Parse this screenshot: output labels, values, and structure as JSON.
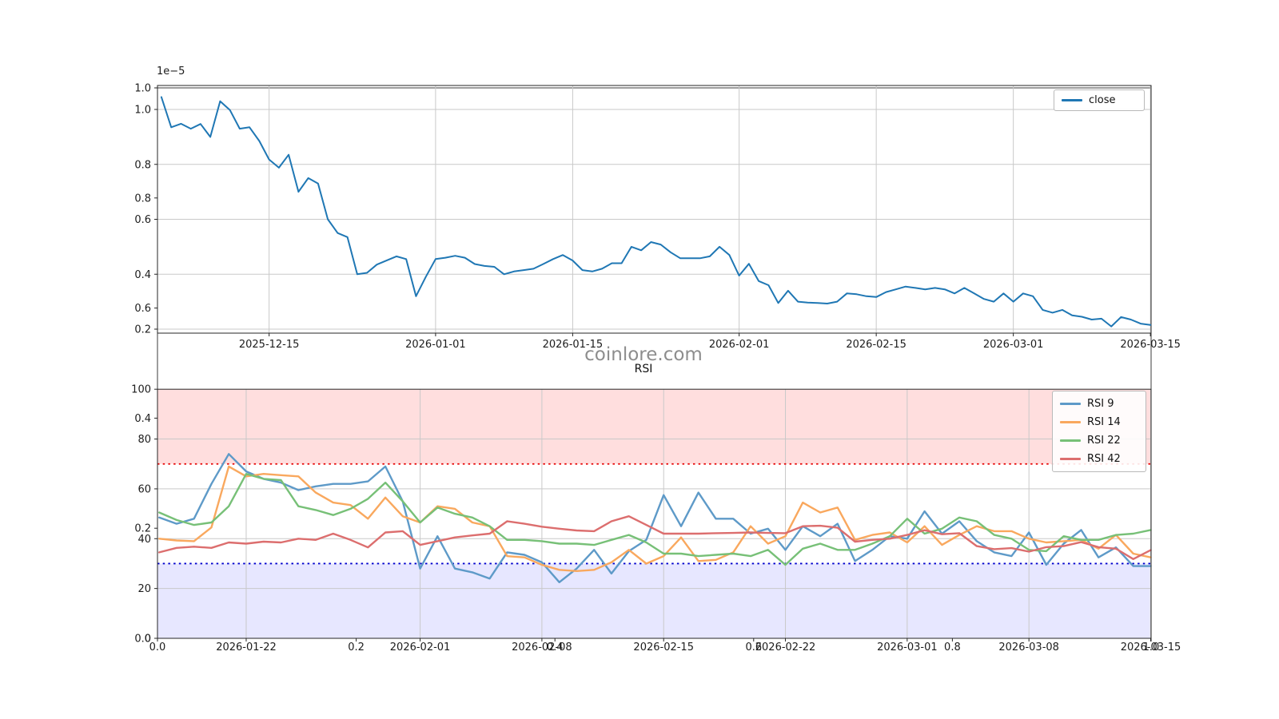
{
  "watermark": "coinlore.com",
  "colors": {
    "background": "#ffffff",
    "grid": "#c9c9c9",
    "spine": "#262626",
    "tick_label": "#1c1c1c",
    "watermark": "#7a7a7a",
    "legend_border": "#b9b9b9",
    "close_line": "#1f77b4"
  },
  "overlay_axis": {
    "x_tick_labels": [
      "0.0",
      "0.2",
      "0.4",
      "0.6",
      "0.8",
      "1.0"
    ],
    "y_tick_labels": [
      "0.0",
      "0.2",
      "0.4",
      "0.6",
      "0.8",
      "1.0"
    ]
  },
  "chart_data": [
    {
      "type": "line",
      "name": "price",
      "offset_text": "1e−5",
      "start_date": "2025-12-04",
      "x_ticks": [
        {
          "day": 11,
          "label": "2025-12-15"
        },
        {
          "day": 28,
          "label": "2026-01-01"
        },
        {
          "day": 42,
          "label": "2026-01-15"
        },
        {
          "day": 59,
          "label": "2026-02-01"
        },
        {
          "day": 73,
          "label": "2026-02-15"
        },
        {
          "day": 87,
          "label": "2026-03-01"
        },
        {
          "day": 101,
          "label": "2026-03-15"
        }
      ],
      "y_ticks": [
        {
          "value": 1.0,
          "label": "1.0"
        },
        {
          "value": 0.8,
          "label": "0.8"
        },
        {
          "value": 0.6,
          "label": "0.6"
        },
        {
          "value": 0.4,
          "label": "0.4"
        },
        {
          "value": 0.2,
          "label": "0.2"
        }
      ],
      "ylim_1e5": [
        0.1855,
        1.0875
      ],
      "grid": true,
      "legend_position": "upper right",
      "series": [
        {
          "name": "close",
          "color": "#1f77b4",
          "width": 2,
          "values_1e5": [
            1.045,
            0.935,
            0.948,
            0.93,
            0.947,
            0.9,
            1.03,
            0.998,
            0.93,
            0.935,
            0.885,
            0.818,
            0.788,
            0.835,
            0.7,
            0.75,
            0.73,
            0.6,
            0.55,
            0.535,
            0.4,
            0.405,
            0.435,
            0.45,
            0.465,
            0.455,
            0.32,
            0.39,
            0.455,
            0.46,
            0.467,
            0.46,
            0.437,
            0.43,
            0.427,
            0.4,
            0.41,
            0.415,
            0.42,
            0.437,
            0.455,
            0.47,
            0.45,
            0.415,
            0.41,
            0.42,
            0.44,
            0.44,
            0.5,
            0.487,
            0.517,
            0.508,
            0.48,
            0.458,
            0.458,
            0.458,
            0.465,
            0.5,
            0.47,
            0.395,
            0.438,
            0.375,
            0.36,
            0.295,
            0.34,
            0.3,
            0.297,
            0.295,
            0.293,
            0.3,
            0.33,
            0.327,
            0.32,
            0.317,
            0.335,
            0.345,
            0.355,
            0.35,
            0.345,
            0.35,
            0.345,
            0.33,
            0.35,
            0.33,
            0.31,
            0.3,
            0.33,
            0.3,
            0.33,
            0.32,
            0.27,
            0.26,
            0.27,
            0.25,
            0.245,
            0.235,
            0.238,
            0.21,
            0.244,
            0.235,
            0.22,
            0.215
          ]
        }
      ]
    },
    {
      "type": "line",
      "name": "rsi",
      "title": "RSI",
      "start_date": "2026-01-17",
      "x_ticks": [
        {
          "day": 5,
          "label": "2026-01-22"
        },
        {
          "day": 15,
          "label": "2026-02-01"
        },
        {
          "day": 22,
          "label": "2026-02-08"
        },
        {
          "day": 29,
          "label": "2026-02-15"
        },
        {
          "day": 36,
          "label": "2026-02-22"
        },
        {
          "day": 43,
          "label": "2026-03-01"
        },
        {
          "day": 50,
          "label": "2026-03-08"
        },
        {
          "day": 57,
          "label": "2026-03-15"
        }
      ],
      "y_ticks": [
        {
          "value": 100,
          "label": "100"
        },
        {
          "value": 80,
          "label": "80"
        },
        {
          "value": 60,
          "label": "60"
        },
        {
          "value": 40,
          "label": "40"
        },
        {
          "value": 20,
          "label": "20"
        },
        {
          "value": 0,
          "label": "0"
        }
      ],
      "ylim": [
        0,
        100
      ],
      "grid": true,
      "overbought": {
        "level": 70,
        "line_color": "#e60000",
        "band_color": "rgba(255,0,0,0.13)"
      },
      "oversold": {
        "level": 30,
        "line_color": "#0000cd",
        "band_color": "rgba(60,60,255,0.12)"
      },
      "series": [
        {
          "name": "RSI 9",
          "color": "#5e9ac8",
          "width": 2.4,
          "values": [
            48.5,
            46,
            48,
            62,
            74,
            67,
            64,
            62.5,
            59.5,
            61,
            62,
            62,
            63,
            69,
            55,
            28,
            41,
            28,
            26.5,
            24,
            34.5,
            33.5,
            30.5,
            22.5,
            28,
            35.5,
            26,
            35,
            39.5,
            57.5,
            45,
            58.5,
            48,
            48,
            42,
            44,
            35.5,
            45,
            41,
            46,
            31,
            35.5,
            41,
            40,
            51,
            42,
            47,
            39,
            34.5,
            33,
            42.5,
            29.5,
            38,
            43.5,
            32.5,
            36.5,
            29,
            29
          ]
        },
        {
          "name": "RSI 14",
          "color": "#f9a85e",
          "width": 2.4,
          "values": [
            40,
            39.3,
            39,
            44.5,
            69,
            65,
            66,
            65.5,
            65,
            58.5,
            54.5,
            53.5,
            48,
            56.5,
            49,
            46.5,
            53,
            52,
            46.5,
            45,
            33,
            32.5,
            29.5,
            27.5,
            27,
            27.5,
            30.5,
            35.5,
            30,
            33,
            40.5,
            31,
            31.5,
            34.5,
            45,
            38,
            41,
            54.5,
            50.5,
            52.5,
            39.5,
            41.5,
            42.5,
            38.5,
            45,
            37.5,
            41.5,
            45,
            43,
            43,
            40,
            38.5,
            39,
            39.5,
            36,
            41.5,
            34,
            32.5
          ]
        },
        {
          "name": "RSI 22",
          "color": "#77c077",
          "width": 2.4,
          "values": [
            50.5,
            47.5,
            45.5,
            46.5,
            53,
            66,
            64,
            63.5,
            53,
            51.5,
            49.5,
            52,
            56,
            62.5,
            55,
            46.5,
            52.5,
            50,
            48.5,
            45,
            39.5,
            39.5,
            39,
            38,
            38,
            37.5,
            39.5,
            41.5,
            38.5,
            34,
            34,
            33,
            33.5,
            34,
            33,
            35.5,
            29.5,
            36,
            38,
            35.5,
            35.5,
            38,
            41,
            48,
            42,
            44,
            48.5,
            47,
            41.5,
            40,
            35.5,
            35,
            41,
            39.5,
            39.5,
            41.5,
            42,
            43.5
          ]
        },
        {
          "name": "RSI 42",
          "color": "#dc6e6e",
          "width": 2.4,
          "values": [
            34.5,
            36.3,
            36.8,
            36.3,
            38.5,
            38,
            38.8,
            38.5,
            40,
            39.5,
            42,
            39.5,
            36.5,
            42.5,
            43,
            37.5,
            39,
            40.5,
            41.3,
            42,
            47,
            46,
            44.8,
            44,
            43.3,
            43,
            47,
            49,
            45.5,
            42,
            42,
            42,
            42.2,
            42.3,
            42.5,
            42.3,
            42.2,
            45,
            45.2,
            44.4,
            38.8,
            39.5,
            40,
            41.5,
            43.4,
            41.8,
            42.2,
            37,
            35.8,
            36.2,
            34.8,
            36.6,
            37,
            38.6,
            36.6,
            36,
            31.8,
            35.4
          ]
        }
      ]
    }
  ]
}
